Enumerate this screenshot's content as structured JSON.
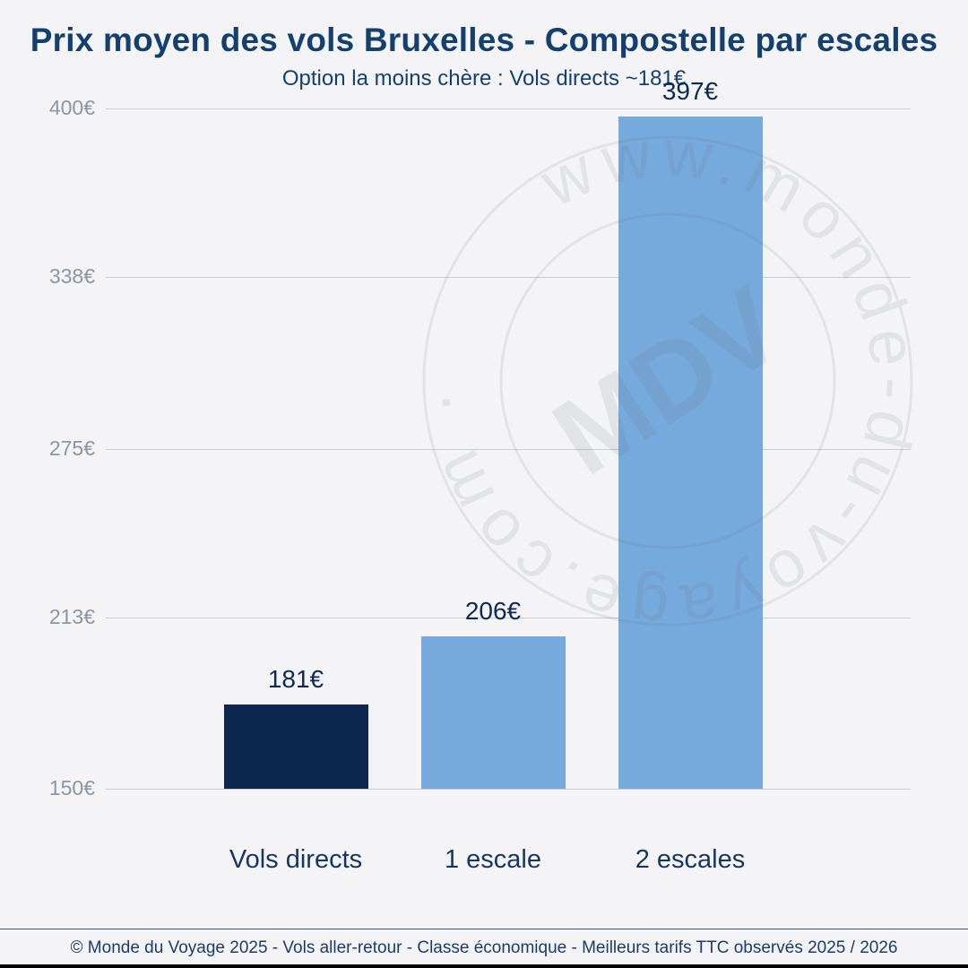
{
  "page": {
    "footer": "© Monde du Voyage 2025 - Vols aller-retour - Classe économique - Meilleurs tarifs TTC observés 2025 / 2026",
    "watermark": {
      "ring_text": "www.monde-du-voyage.com ·",
      "center_text": "MDV"
    }
  },
  "chart_data": {
    "type": "bar",
    "title": "Prix moyen des vols Bruxelles - Compostelle par escales",
    "subtitle": "Option la moins chère : Vols directs ~181€",
    "categories": [
      "Vols directs",
      "1 escale",
      "2 escales"
    ],
    "values": [
      181,
      206,
      397
    ],
    "value_labels": [
      "181€",
      "206€",
      "397€"
    ],
    "bar_colors": [
      "#0d2750",
      "#76a9dc",
      "#76a9dc"
    ],
    "ylim": [
      150,
      400
    ],
    "yticks": [
      150,
      213,
      275,
      338,
      400
    ],
    "ytick_labels": [
      "150€",
      "213€",
      "275€",
      "338€",
      "400€"
    ],
    "xlabel": "",
    "ylabel": "",
    "grid": true,
    "legend": "none",
    "currency": "EUR"
  }
}
